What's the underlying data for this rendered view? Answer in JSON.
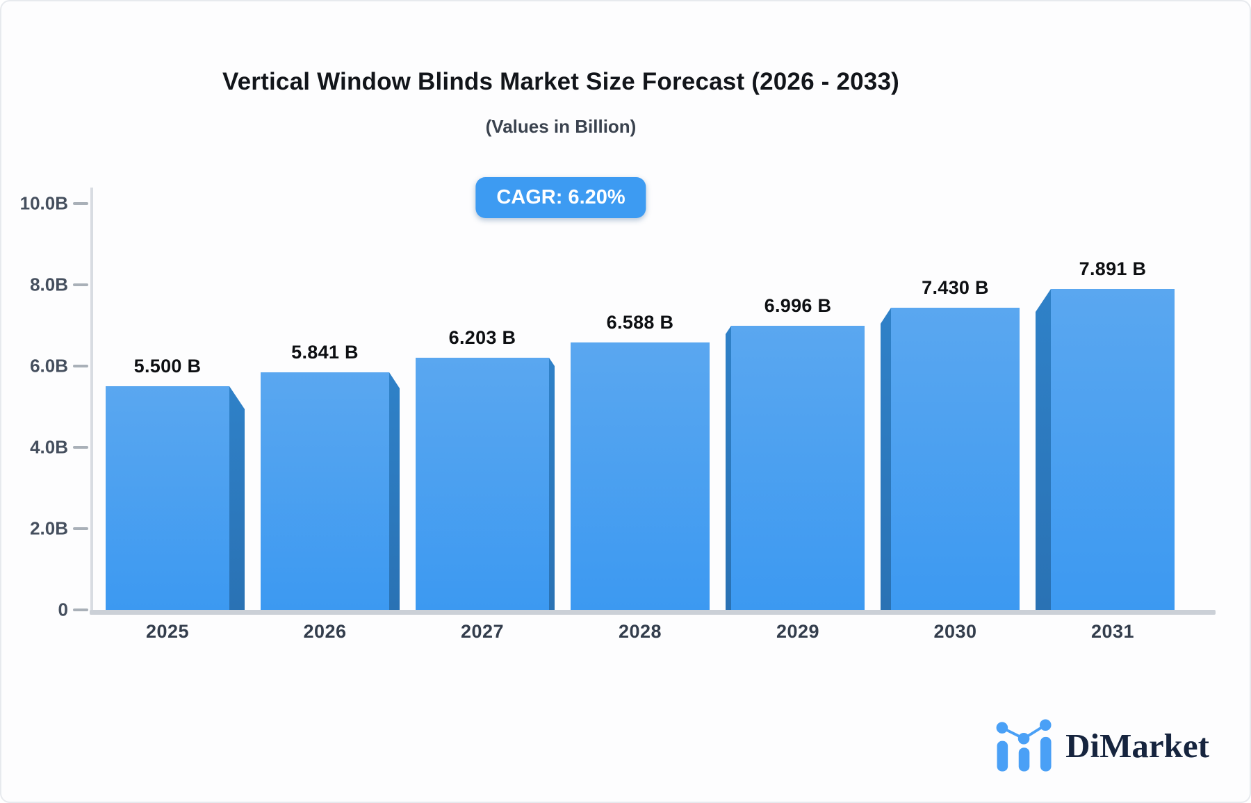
{
  "header": {
    "title": "Vertical Window Blinds Market Size Forecast (2026 - 2033)",
    "subtitle": "(Values in Billion)",
    "cagr_label": "CAGR: 6.20%",
    "cagr_badge_color": "#3d9bf2"
  },
  "chart_data": {
    "type": "bar",
    "title": "Vertical Window Blinds Market Size Forecast (2026 - 2033)",
    "subtitle": "(Values in Billion)",
    "categories": [
      "2025",
      "2026",
      "2027",
      "2028",
      "2029",
      "2030",
      "2031"
    ],
    "values": [
      5.5,
      5.841,
      6.203,
      6.588,
      6.996,
      7.43,
      7.891
    ],
    "value_labels": [
      "5.500 B",
      "5.841 B",
      "6.203 B",
      "6.588 B",
      "6.996 B",
      "7.430 B",
      "7.891 B"
    ],
    "xlabel": "",
    "ylabel": "",
    "ylim": [
      0,
      10
    ],
    "y_ticks": [
      {
        "label": "10.0B",
        "value": 10
      },
      {
        "label": "8.0B",
        "value": 8
      },
      {
        "label": "6.0B",
        "value": 6
      },
      {
        "label": "4.0B",
        "value": 4
      },
      {
        "label": "2.0B",
        "value": 2
      },
      {
        "label": "0",
        "value": 0
      }
    ],
    "grid": false,
    "legend": false,
    "style": "3d-perspective-bars",
    "bar_color_top": "#5aa7f0",
    "bar_color_bottom": "#3c99f1",
    "bar_side_color_light": "#2f81c8",
    "bar_side_color_dark": "#2a72b4"
  },
  "branding": {
    "logo_text": "DiMarket",
    "logo_icon": "bar-line-chart-icon",
    "logo_text_color": "#16243e",
    "logo_accent_color": "#4aa0f6"
  }
}
